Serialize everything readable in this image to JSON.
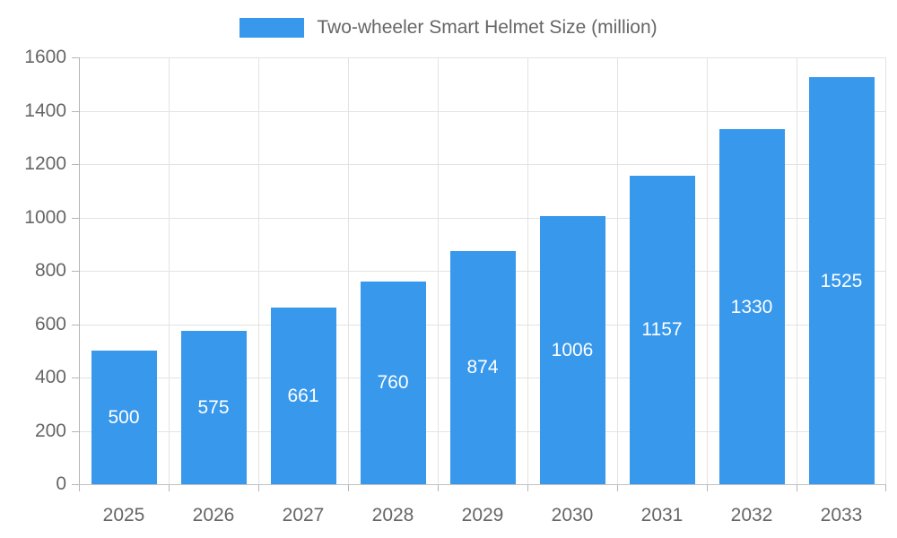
{
  "chart_data": {
    "type": "bar",
    "title": "",
    "categories": [
      "2025",
      "2026",
      "2027",
      "2028",
      "2029",
      "2030",
      "2031",
      "2032",
      "2033"
    ],
    "series": [
      {
        "name": "Two-wheeler Smart Helmet Size (million)",
        "values": [
          500,
          575,
          661,
          760,
          874,
          1006,
          1157,
          1330,
          1525
        ]
      }
    ],
    "xlabel": "",
    "ylabel": "",
    "ylim": [
      0,
      1600
    ],
    "ytick_step": 200,
    "yticks": [
      0,
      200,
      400,
      600,
      800,
      1000,
      1200,
      1400,
      1600
    ],
    "grid": true,
    "legend_position": "top",
    "bar_value_labels_visible": true,
    "colors": {
      "bar": "#3898EC",
      "bar_value_label": "#FFFFFF",
      "grid": "#E3E3E3",
      "axis": "#B5B5B5",
      "tick_text": "#666666",
      "legend_text": "#666666",
      "background": "#FFFFFF"
    }
  }
}
